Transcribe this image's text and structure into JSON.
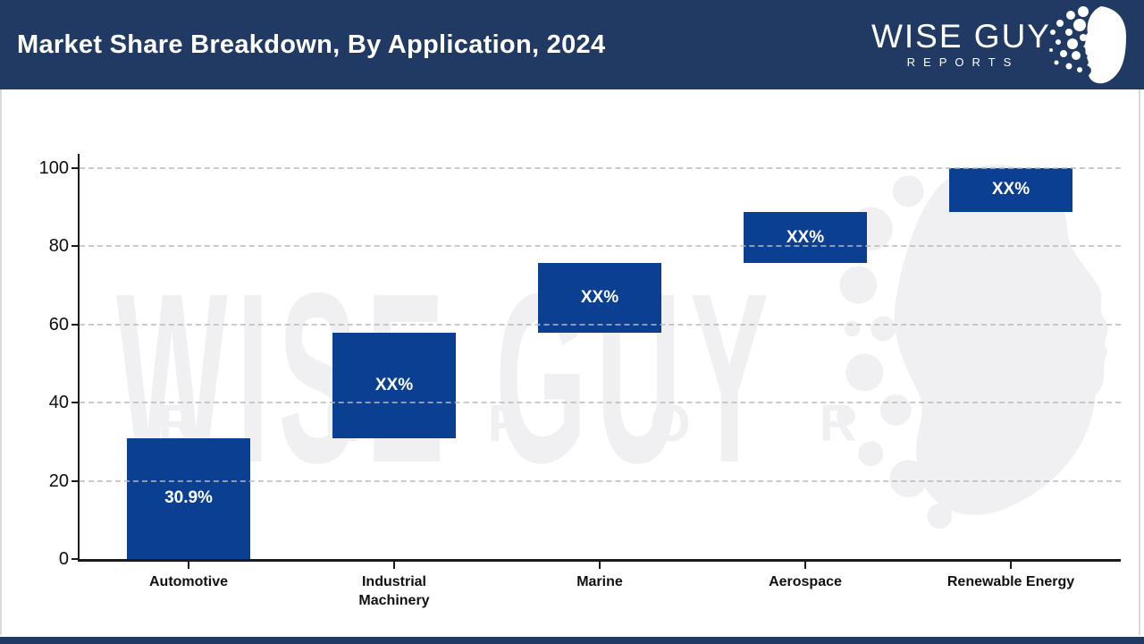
{
  "header": {
    "title": "Market Share Breakdown, By Application, 2024",
    "logo": {
      "line1": "WISE GUY",
      "line2": "REPORTS"
    }
  },
  "watermark": {
    "line1": "WISE GUY",
    "line2": "R E P O R T S"
  },
  "theme": {
    "header_bg": "#213a63",
    "footer_bg": "#213a63",
    "bar_color": "#0a3f92",
    "watermark_color": "#f0f0f2"
  },
  "chart_data": {
    "type": "bar",
    "subtype": "waterfall",
    "title": "Market Share Breakdown, By Application, 2024",
    "xlabel": "",
    "ylabel": "",
    "categories": [
      "Automotive",
      "Industrial Machinery",
      "Marine",
      "Aerospace",
      "Renewable Energy"
    ],
    "categories_display": [
      "Automotive",
      "Industrial\nMachinery",
      "Marine",
      "Aerospace",
      "Renewable Energy"
    ],
    "segments": [
      {
        "category": "Automotive",
        "start": 0,
        "end": 30.9,
        "label": "30.9%"
      },
      {
        "category": "Industrial Machinery",
        "start": 30.9,
        "end": 57.8,
        "label": "XX%"
      },
      {
        "category": "Marine",
        "start": 57.8,
        "end": 75.6,
        "label": "XX%"
      },
      {
        "category": "Aerospace",
        "start": 75.6,
        "end": 88.7,
        "label": "XX%"
      },
      {
        "category": "Renewable Energy",
        "start": 88.7,
        "end": 100,
        "label": "XX%"
      }
    ],
    "y_ticks": [
      0,
      20,
      40,
      60,
      80,
      100
    ],
    "ylim": [
      0,
      103.5
    ],
    "grid": "horizontal dashed",
    "legend": "none"
  }
}
